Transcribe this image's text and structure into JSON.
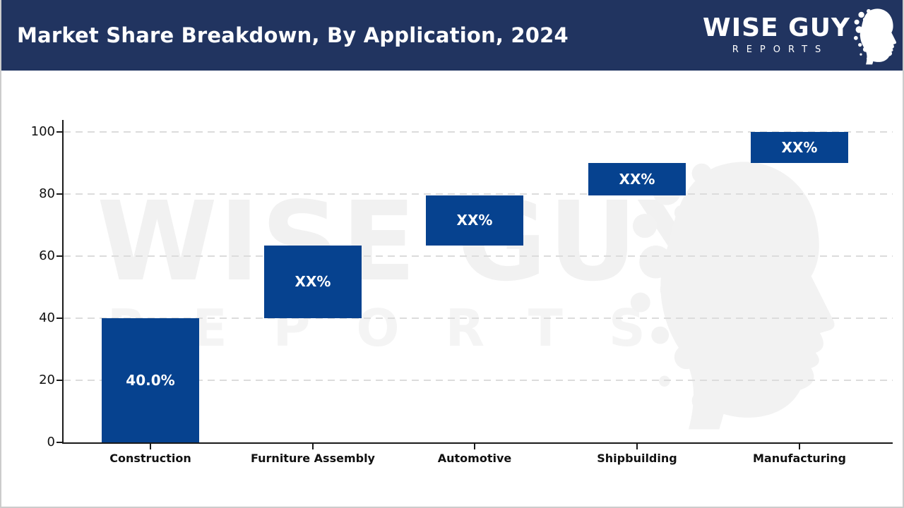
{
  "header": {
    "title": "Market Share Breakdown, By Application, 2024",
    "logo_line1": "WISE GUY",
    "logo_line2": "REPORTS"
  },
  "watermark": {
    "line1": "WISE GUY",
    "line2": "REPORTS"
  },
  "chart_data": {
    "type": "bar",
    "variant": "waterfall",
    "title": "Market Share Breakdown, By Application, 2024",
    "categories": [
      "Construction",
      "Furniture Assembly",
      "Automotive",
      "Shipbuilding",
      "Manufacturing"
    ],
    "segments": [
      {
        "category": "Construction",
        "start": 0,
        "end": 40,
        "label": "40.0%"
      },
      {
        "category": "Furniture Assembly",
        "start": 40,
        "end": 63.5,
        "label": "XX%"
      },
      {
        "category": "Automotive",
        "start": 63.5,
        "end": 79.5,
        "label": "XX%"
      },
      {
        "category": "Shipbuilding",
        "start": 79.5,
        "end": 90,
        "label": "XX%"
      },
      {
        "category": "Manufacturing",
        "start": 90,
        "end": 100,
        "label": "XX%"
      }
    ],
    "y_ticks": [
      0,
      20,
      40,
      60,
      80,
      100
    ],
    "ylim": [
      0,
      105
    ],
    "xlabel": "",
    "ylabel": "",
    "grid": "horizontal-dashed",
    "legend": false
  },
  "colors": {
    "header_bg": "#213460",
    "bar_blue": "#06428f",
    "axis": "#1a1a1a",
    "gridline": "#dcdcdc",
    "watermark": "#f1f1f1",
    "bar_label_text": "#ffffff",
    "tick_text": "#111111",
    "page_border": "#cccccc"
  }
}
